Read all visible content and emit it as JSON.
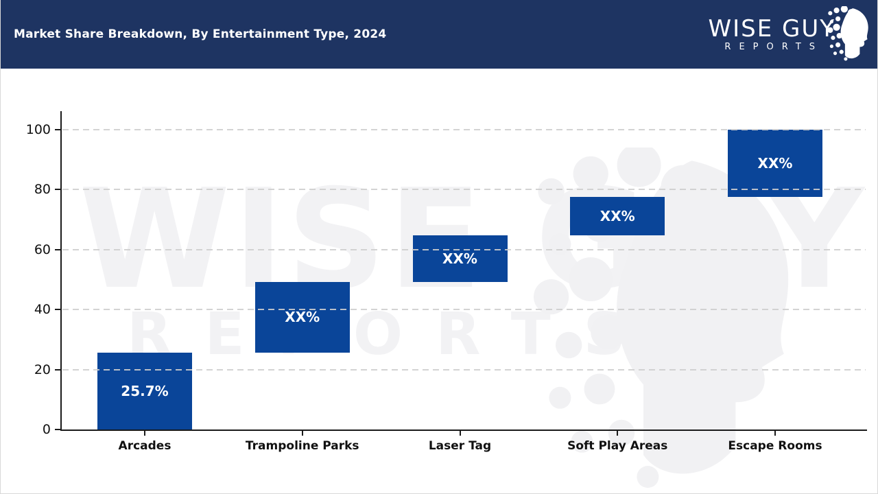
{
  "header": {
    "title": "Market Share Breakdown, By Entertainment Type, 2024",
    "bg_color": "#1e3462",
    "logo": {
      "line1": "WISE GUY",
      "line2": "REPORTS"
    }
  },
  "watermark": {
    "line1": "WISE GUY",
    "line2": "REPORTS"
  },
  "chart_data": {
    "type": "bar",
    "subtype": "waterfall",
    "title": "Market Share Breakdown, By Entertainment Type, 2024",
    "categories": [
      "Arcades",
      "Trampoline Parks",
      "Laser Tag",
      "Soft Play Areas",
      "Escape Rooms"
    ],
    "segments": [
      {
        "category": "Arcades",
        "start": 0,
        "end": 25.7,
        "label": "25.7%"
      },
      {
        "category": "Trampoline Parks",
        "start": 25.7,
        "end": 49.1,
        "label": "XX%"
      },
      {
        "category": "Laser Tag",
        "start": 49.1,
        "end": 64.7,
        "label": "XX%"
      },
      {
        "category": "Soft Play Areas",
        "start": 64.7,
        "end": 77.5,
        "label": "XX%"
      },
      {
        "category": "Escape Rooms",
        "start": 77.5,
        "end": 100,
        "label": "XX%"
      }
    ],
    "yticks": [
      0,
      20,
      40,
      60,
      80,
      100
    ],
    "ylim": [
      0,
      105
    ],
    "xlabel": "",
    "ylabel": "",
    "grid": "dashed-horizontal",
    "legend": "none",
    "bar_color": "#0a4599",
    "bar_label_color": "#ffffff",
    "axis_color": "#1a1a1a"
  }
}
